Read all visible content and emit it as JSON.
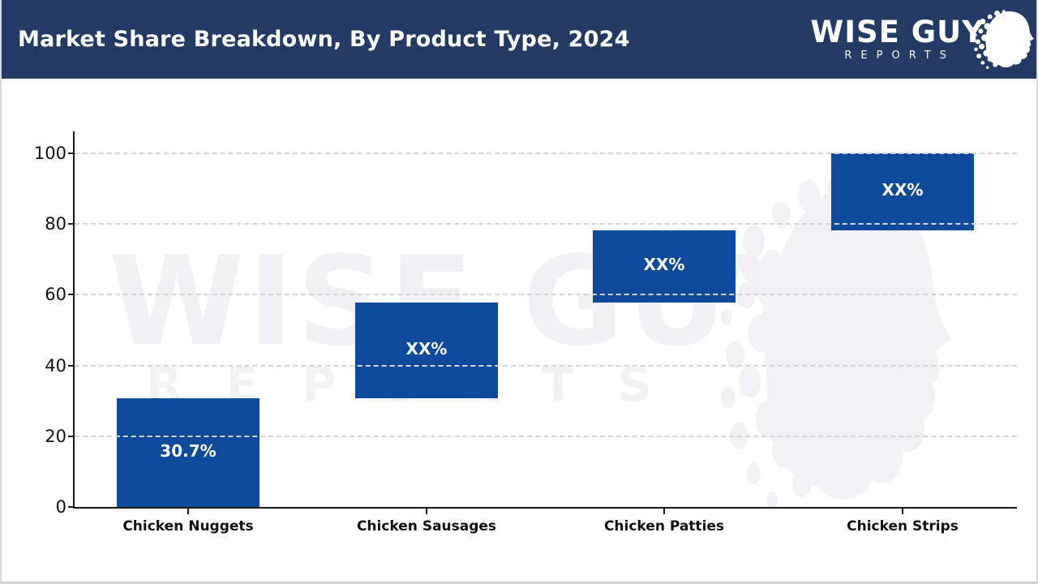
{
  "header": {
    "title": "Market Share Breakdown, By Product Type, 2024",
    "logo_line1": "WISE GUY",
    "logo_line2": "REPORTS",
    "bg_color": "#233a65"
  },
  "watermark": {
    "line1": "WISE GUY",
    "line2": "REPORTS"
  },
  "chart_data": {
    "type": "bar",
    "variant": "waterfall",
    "title": "Market Share Breakdown, By Product Type, 2024",
    "categories": [
      "Chicken Nuggets",
      "Chicken Sausages",
      "Chicken Patties",
      "Chicken Strips"
    ],
    "segments": [
      {
        "category": "Chicken Nuggets",
        "label": "30.7%",
        "start": 0,
        "end": 30.7
      },
      {
        "category": "Chicken Sausages",
        "label": "XX%",
        "start": 30.7,
        "end": 57.8
      },
      {
        "category": "Chicken Patties",
        "label": "XX%",
        "start": 57.8,
        "end": 78.3
      },
      {
        "category": "Chicken Strips",
        "label": "XX%",
        "start": 78.3,
        "end": 100
      }
    ],
    "values_display": [
      "30.7%",
      "XX%",
      "XX%",
      "XX%"
    ],
    "ylim": [
      0,
      100
    ],
    "yticks": [
      0,
      20,
      40,
      60,
      80,
      100
    ],
    "bar_color": "#0d4a9c",
    "grid": {
      "axis": "y",
      "style": "dashed",
      "color": "#d6d6d6"
    },
    "xlabel": "",
    "ylabel": "",
    "legend": null
  }
}
